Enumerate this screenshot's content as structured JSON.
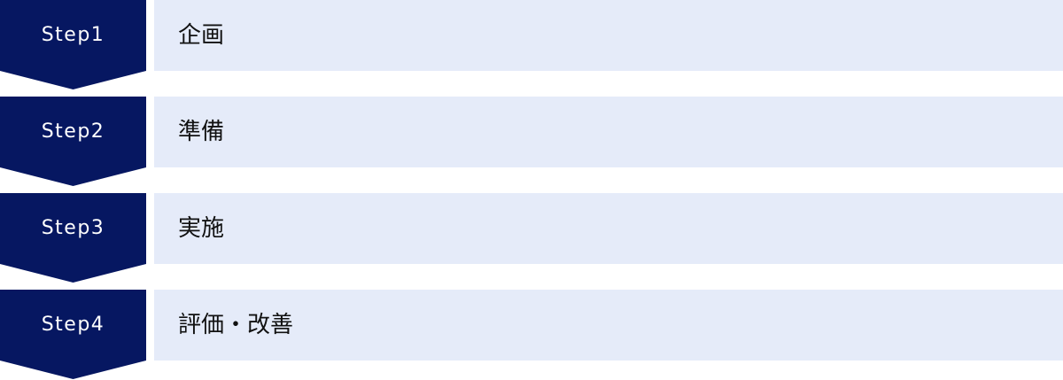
{
  "colors": {
    "step": "#061761",
    "bar": "#e5ebf9"
  },
  "steps": [
    {
      "label": "Step1",
      "text": "企画"
    },
    {
      "label": "Step2",
      "text": "準備"
    },
    {
      "label": "Step3",
      "text": "実施"
    },
    {
      "label": "Step4",
      "text": "評価・改善"
    }
  ]
}
